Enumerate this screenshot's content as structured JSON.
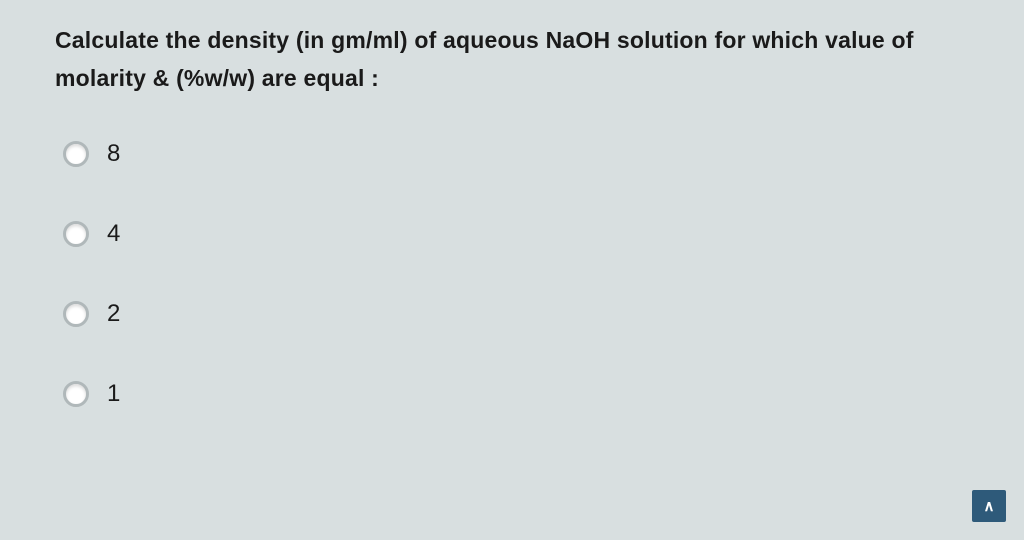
{
  "question": {
    "text": "Calculate the density (in gm/ml) of aqueous NaOH solution for which value of molarity & (%w/w) are equal :",
    "font_size": 23,
    "font_weight": 600,
    "color": "#1a1a1a"
  },
  "options": [
    {
      "label": "8",
      "selected": false
    },
    {
      "label": "4",
      "selected": false
    },
    {
      "label": "2",
      "selected": false
    },
    {
      "label": "1",
      "selected": false
    }
  ],
  "styling": {
    "background_color": "#d8dfe0",
    "radio_border_color": "#b0b8ba",
    "radio_fill_color": "#ffffff",
    "option_font_size": 24,
    "option_color": "#1a1a1a",
    "option_gap": 52
  },
  "caret_button": {
    "symbol": "∧",
    "background": "#2e5a7a",
    "text_color": "#ffffff"
  }
}
